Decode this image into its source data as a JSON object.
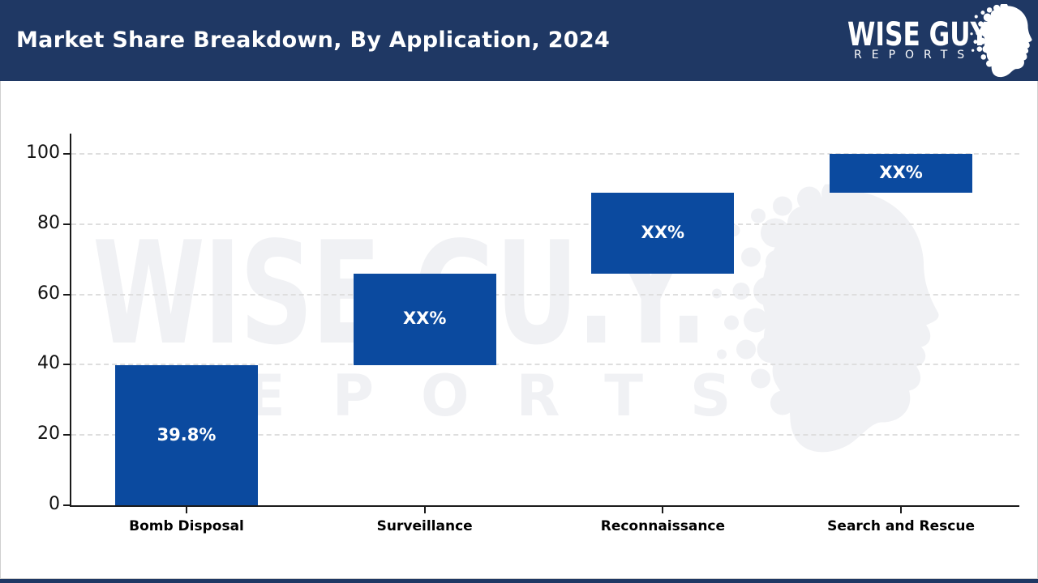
{
  "header": {
    "title": "Market Share Breakdown, By Application, 2024",
    "logo": {
      "wordmark": "WISE GUY",
      "subtext": "REPORTS"
    }
  },
  "watermark": {
    "wordmark": "WISE GU.Y.",
    "subtext": "REPORTS"
  },
  "chart_data": {
    "type": "bar",
    "subtype": "waterfall",
    "title": "Market Share Breakdown, By Application, 2024",
    "categories": [
      "Bomb Disposal",
      "Surveillance",
      "Reconnaissance",
      "Search and Rescue"
    ],
    "series": [
      {
        "name": "Market Share",
        "segments": [
          {
            "category": "Bomb Disposal",
            "start": 0,
            "end": 39.8,
            "label": "39.8%"
          },
          {
            "category": "Surveillance",
            "start": 39.8,
            "end": 66,
            "label": "XX%"
          },
          {
            "category": "Reconnaissance",
            "start": 66,
            "end": 89,
            "label": "XX%"
          },
          {
            "category": "Search and Rescue",
            "start": 89,
            "end": 100,
            "label": "XX%"
          }
        ]
      }
    ],
    "xlabel": "",
    "ylabel": "",
    "yticks": [
      0,
      20,
      40,
      60,
      80,
      100
    ],
    "ylim": [
      0,
      105
    ],
    "grid": "horizontal-dashed",
    "legend": "none",
    "colors": {
      "bar": "#0b4a9f",
      "bar_label": "#ffffff",
      "grid": "#dedede",
      "axis": "#1a1a1a",
      "header_bg": "#1f3864",
      "watermark": "#f0f1f4"
    }
  }
}
